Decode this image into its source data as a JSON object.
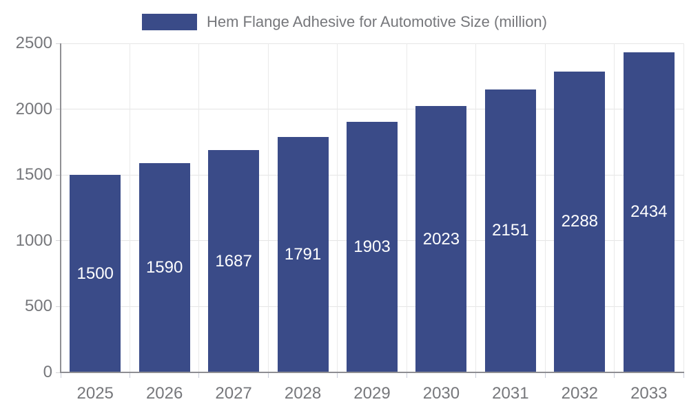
{
  "chart_data": {
    "type": "bar",
    "title": "Hem Flange Adhesive for Automotive Size (million)",
    "legend": [
      "Hem Flange Adhesive for Automotive Size (million)"
    ],
    "legend_position": "top-center",
    "categories": [
      "2025",
      "2026",
      "2027",
      "2028",
      "2029",
      "2030",
      "2031",
      "2032",
      "2033"
    ],
    "values": [
      1500,
      1590,
      1687,
      1791,
      1903,
      2023,
      2151,
      2288,
      2434
    ],
    "xlabel": "",
    "ylabel": "",
    "ylim": [
      0,
      2500
    ],
    "yticks": [
      0,
      500,
      1000,
      1500,
      2000,
      2500
    ],
    "grid": "on",
    "bar_color": "#3A4B88",
    "bar_value_label_color": "#FFFFFF",
    "axis_text_color": "#76777B",
    "grid_color": "#E5E5E5",
    "axis_line_color": "#8E8E92"
  }
}
